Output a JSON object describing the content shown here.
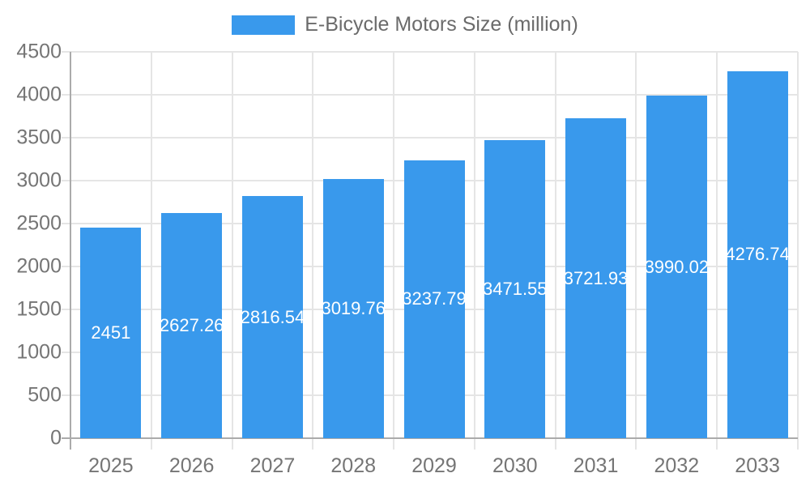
{
  "chart_data": {
    "type": "bar",
    "categories": [
      "2025",
      "2026",
      "2027",
      "2028",
      "2029",
      "2030",
      "2031",
      "2032",
      "2033"
    ],
    "values": [
      2451,
      2627.26,
      2816.54,
      3019.76,
      3237.79,
      3471.55,
      3721.93,
      3990.02,
      4276.74
    ],
    "value_labels": [
      "2451",
      "2627.26",
      "2816.54",
      "3019.76",
      "3237.79",
      "3471.55",
      "3721.93",
      "3990.02",
      "4276.74"
    ],
    "series_name": "E-Bicycle Motors Size (million)",
    "title": "",
    "xlabel": "",
    "ylabel": "",
    "ylim": [
      0,
      4500
    ],
    "ytick_step": 500,
    "ytick_labels": [
      "0",
      "500",
      "1000",
      "1500",
      "2000",
      "2500",
      "3000",
      "3500",
      "4000",
      "4500"
    ],
    "grid": true,
    "legend_position": "top",
    "colors": {
      "bar": "#3999EC",
      "value_label": "#FFFFFF",
      "axis_text": "#757575",
      "legend_text": "#6B6B6B",
      "grid_line": "#E5E5E5",
      "axis_line": "#ABABAB",
      "background": "#FFFFFF"
    }
  }
}
